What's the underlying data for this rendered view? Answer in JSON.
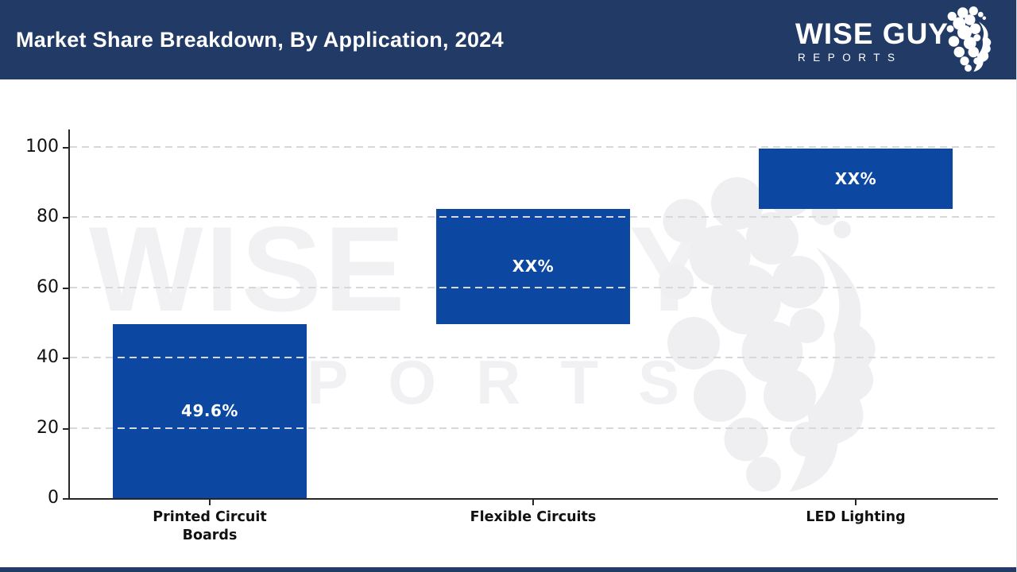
{
  "header": {
    "title": "Market Share Breakdown, By Application, 2024",
    "logo": {
      "line1": "WISE GUY",
      "line2": "REPORTS"
    }
  },
  "watermark": {
    "line1": "WISE GUY",
    "line2": "REPORTS"
  },
  "colors": {
    "header_bg": "#213a66",
    "bar_blue": "#0c47a1",
    "grid_gray": "#d8d8da",
    "watermark_gray": "#f1f1f4"
  },
  "chart_data": {
    "type": "waterfall",
    "title": "Market Share Breakdown, By Application, 2024",
    "categories": [
      "Printed Circuit\nBoards",
      "Flexible Circuits",
      "LED Lighting"
    ],
    "segments": [
      {
        "category": "Printed Circuit Boards",
        "start": 0,
        "end": 49.6,
        "label": "49.6%"
      },
      {
        "category": "Flexible Circuits",
        "start": 49.6,
        "end": 82.4,
        "label": "XX%"
      },
      {
        "category": "LED Lighting",
        "start": 82.4,
        "end": 99.6,
        "label": "XX%"
      }
    ],
    "yticks": [
      0,
      20,
      40,
      60,
      80,
      100
    ],
    "ylim": [
      0,
      105
    ],
    "xlabel": "",
    "ylabel": "",
    "grid": "horizontal-dashed",
    "legend": "none",
    "bar_color": "#0c47a1"
  }
}
